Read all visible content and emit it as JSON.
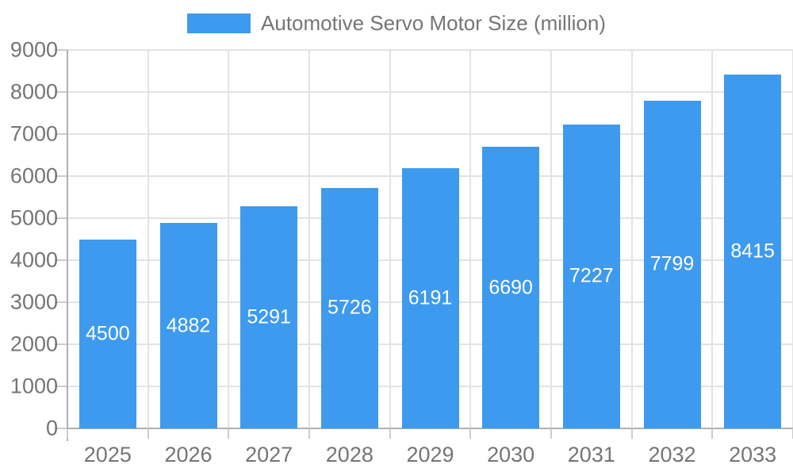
{
  "legend": {
    "label": "Automotive Servo Motor Size (million)"
  },
  "colors": {
    "bar": "#3E9AEE",
    "axis_line": "#b0b0b0",
    "grid_line": "#e3e3e3",
    "tick_line": "#cccccc",
    "axis_text": "#757575",
    "bar_label_text": "#ffffff",
    "background": "#ffffff"
  },
  "chart_data": {
    "type": "bar",
    "title": "Automotive Servo Motor Size (million)",
    "categories": [
      "2025",
      "2026",
      "2027",
      "2028",
      "2029",
      "2030",
      "2031",
      "2032",
      "2033"
    ],
    "values": [
      4500,
      4882,
      5291,
      5726,
      6191,
      6690,
      7227,
      7799,
      8415
    ],
    "xlabel": "",
    "ylabel": "",
    "ylim": [
      0,
      9000
    ],
    "ytick_step": 1000,
    "y_tick_labels": [
      "0",
      "1000",
      "2000",
      "3000",
      "4000",
      "5000",
      "6000",
      "7000",
      "8000",
      "9000"
    ],
    "grid": true,
    "legend_position": "top-center",
    "bar_label_position": "inside-center"
  }
}
